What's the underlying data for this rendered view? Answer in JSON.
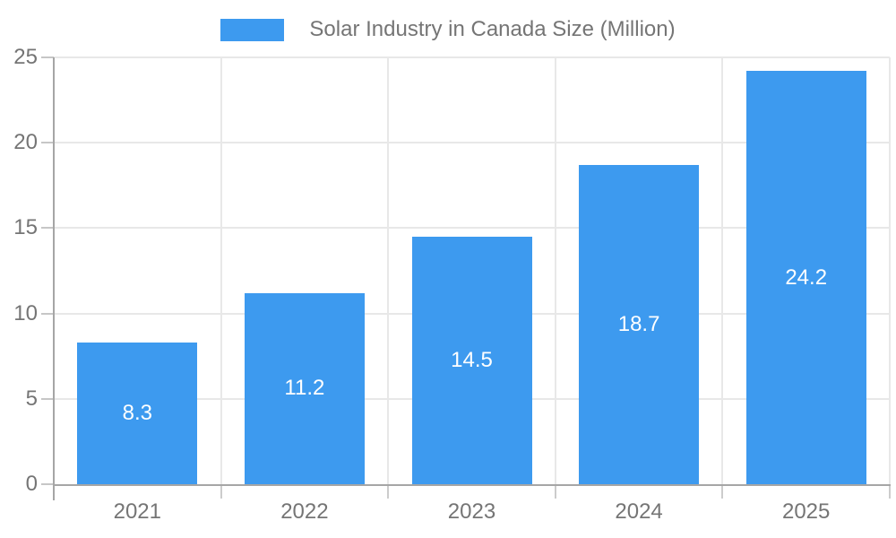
{
  "chart_data": {
    "type": "bar",
    "title": "",
    "legend": {
      "label": "Solar Industry in Canada Size (Million)",
      "position": "top"
    },
    "categories": [
      "2021",
      "2022",
      "2023",
      "2024",
      "2025"
    ],
    "values": [
      8.3,
      11.2,
      14.5,
      18.7,
      24.2
    ],
    "value_labels": [
      "8.3",
      "11.2",
      "14.5",
      "18.7",
      "24.2"
    ],
    "xlabel": "",
    "ylabel": "",
    "ylim": [
      0,
      25
    ],
    "yticks": [
      0,
      5,
      10,
      15,
      20,
      25
    ],
    "grid": true,
    "colors": {
      "bar": "#3d9aef",
      "bar_value_text": "#ffffff",
      "axis_text": "#757575",
      "legend_text": "#757575",
      "grid_line": "#e8e8e8",
      "axis_line": "#a6a6a6"
    }
  }
}
